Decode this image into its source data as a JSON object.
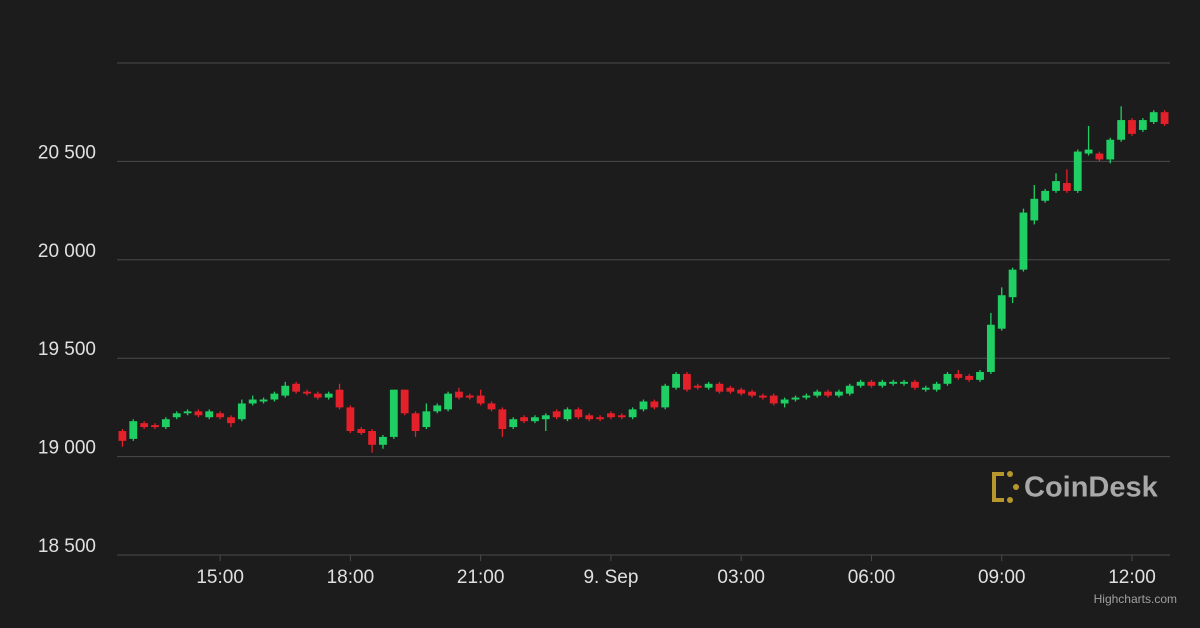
{
  "chart_data": {
    "type": "candlestick",
    "up_color": "#1fcf63",
    "down_color": "#e4202a",
    "grid": true,
    "xlim": [
      -0.5,
      96.5
    ],
    "xticks": [
      {
        "value": 9,
        "label": "15:00"
      },
      {
        "value": 21,
        "label": "18:00"
      },
      {
        "value": 33,
        "label": "21:00"
      },
      {
        "value": 45,
        "label": "9. Sep"
      },
      {
        "value": 57,
        "label": "03:00"
      },
      {
        "value": 69,
        "label": "06:00"
      },
      {
        "value": 81,
        "label": "09:00"
      },
      {
        "value": 93,
        "label": "12:00"
      }
    ],
    "ylim": [
      18500,
      21000
    ],
    "yticks": [
      {
        "value": 18500,
        "label": "18 500"
      },
      {
        "value": 19000,
        "label": "19 000"
      },
      {
        "value": 19500,
        "label": "19 500"
      },
      {
        "value": 20000,
        "label": "20 000"
      },
      {
        "value": 20500,
        "label": "20 500"
      }
    ],
    "open": [
      19130,
      19090,
      19170,
      19160,
      19150,
      19200,
      19220,
      19230,
      19200,
      19220,
      19200,
      19190,
      19270,
      19280,
      19290,
      19310,
      19370,
      19330,
      19320,
      19300,
      19340,
      19250,
      19140,
      19130,
      19060,
      19100,
      19340,
      19220,
      19150,
      19230,
      19240,
      19330,
      19310,
      19310,
      19270,
      19240,
      19150,
      19200,
      19180,
      19190,
      19230,
      19190,
      19240,
      19210,
      19200,
      19220,
      19210,
      19200,
      19240,
      19280,
      19250,
      19350,
      19420,
      19360,
      19350,
      19370,
      19350,
      19340,
      19330,
      19310,
      19310,
      19270,
      19290,
      19300,
      19310,
      19330,
      19310,
      19320,
      19360,
      19380,
      19360,
      19370,
      19370,
      19380,
      19340,
      19340,
      19370,
      19420,
      19410,
      19390,
      19430,
      19650,
      19810,
      19950,
      20200,
      20300,
      20350,
      20390,
      20350,
      20540,
      20540,
      20510,
      20610,
      20710,
      20660,
      20700,
      20750
    ],
    "high": [
      19140,
      19190,
      19180,
      19170,
      19200,
      19230,
      19240,
      19240,
      19240,
      19230,
      19210,
      19290,
      19310,
      19300,
      19330,
      19380,
      19380,
      19340,
      19330,
      19330,
      19370,
      19260,
      19150,
      19140,
      19110,
      19340,
      19340,
      19230,
      19270,
      19270,
      19330,
      19350,
      19320,
      19340,
      19280,
      19250,
      19200,
      19210,
      19210,
      19220,
      19240,
      19250,
      19250,
      19220,
      19210,
      19230,
      19220,
      19250,
      19290,
      19290,
      19370,
      19430,
      19430,
      19370,
      19380,
      19380,
      19360,
      19350,
      19340,
      19320,
      19320,
      19300,
      19310,
      19320,
      19340,
      19340,
      19340,
      19370,
      19390,
      19390,
      19390,
      19390,
      19390,
      19390,
      19360,
      19380,
      19430,
      19440,
      19420,
      19440,
      19730,
      19860,
      19960,
      20260,
      20380,
      20360,
      20440,
      20460,
      20560,
      20680,
      20550,
      20620,
      20780,
      20720,
      20720,
      20760,
      20760
    ],
    "low": [
      19050,
      19080,
      19140,
      19140,
      19140,
      19190,
      19210,
      19200,
      19190,
      19190,
      19150,
      19180,
      19260,
      19270,
      19280,
      19300,
      19320,
      19310,
      19290,
      19290,
      19240,
      19120,
      19110,
      19020,
      19040,
      19090,
      19210,
      19100,
      19140,
      19220,
      19230,
      19290,
      19290,
      19260,
      19230,
      19100,
      19140,
      19170,
      19170,
      19130,
      19190,
      19180,
      19190,
      19180,
      19180,
      19190,
      19190,
      19190,
      19230,
      19240,
      19240,
      19340,
      19330,
      19340,
      19340,
      19320,
      19320,
      19310,
      19300,
      19290,
      19260,
      19250,
      19280,
      19290,
      19300,
      19300,
      19300,
      19310,
      19350,
      19350,
      19350,
      19360,
      19360,
      19340,
      19330,
      19330,
      19360,
      19390,
      19380,
      19380,
      19420,
      19640,
      19780,
      19940,
      20180,
      20290,
      20340,
      20340,
      20340,
      20530,
      20500,
      20490,
      20600,
      20630,
      20650,
      20690,
      20680
    ],
    "close": [
      19080,
      19180,
      19150,
      19150,
      19190,
      19220,
      19230,
      19210,
      19230,
      19200,
      19170,
      19270,
      19290,
      19290,
      19320,
      19360,
      19330,
      19320,
      19300,
      19320,
      19250,
      19130,
      19120,
      19060,
      19100,
      19340,
      19220,
      19130,
      19230,
      19260,
      19320,
      19300,
      19300,
      19270,
      19240,
      19140,
      19190,
      19180,
      19200,
      19210,
      19200,
      19240,
      19200,
      19190,
      19190,
      19200,
      19200,
      19240,
      19280,
      19250,
      19360,
      19420,
      19340,
      19350,
      19370,
      19330,
      19330,
      19320,
      19310,
      19300,
      19270,
      19290,
      19300,
      19310,
      19330,
      19310,
      19330,
      19360,
      19380,
      19360,
      19380,
      19380,
      19380,
      19350,
      19350,
      19370,
      19420,
      19400,
      19390,
      19430,
      19670,
      19820,
      19950,
      20240,
      20310,
      20350,
      20400,
      20350,
      20550,
      20560,
      20510,
      20610,
      20710,
      20640,
      20710,
      20750,
      20690
    ]
  },
  "watermark": "CoinDesk",
  "credits": "Highcharts.com"
}
